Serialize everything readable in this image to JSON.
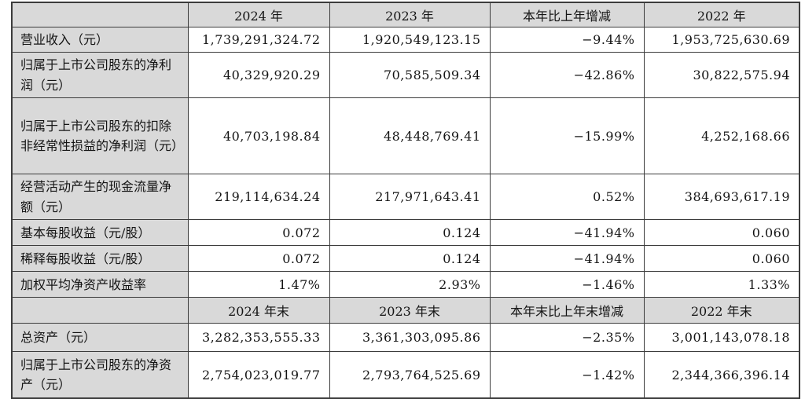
{
  "colors": {
    "header_bg": "#d9d9d9",
    "label_bg": "#d9d9d9",
    "cell_bg": "#ffffff",
    "border": "#3c3c3c",
    "text": "#141414"
  },
  "table": {
    "section_annual": {
      "corner": "",
      "columns": [
        "2024 年",
        "2023 年",
        "本年比上年增减",
        "2022 年"
      ],
      "rows": [
        {
          "label": "营业收入（元）",
          "y2024": "1,739,291,324.72",
          "y2023": "1,920,549,123.15",
          "change": "−9.44%",
          "y2022": "1,953,725,630.69"
        },
        {
          "label": "归属于上市公司股东的净利润（元）",
          "y2024": "40,329,920.29",
          "y2023": "70,585,509.34",
          "change": "−42.86%",
          "y2022": "30,822,575.94"
        },
        {
          "label": "归属于上市公司股东的扣除非经常性损益的净利润（元）",
          "y2024": "40,703,198.84",
          "y2023": "48,448,769.41",
          "change": "−15.99%",
          "y2022": "4,252,168.66"
        },
        {
          "label": "经营活动产生的现金流量净额（元）",
          "y2024": "219,114,634.24",
          "y2023": "217,971,643.41",
          "change": "0.52%",
          "y2022": "384,693,617.19"
        },
        {
          "label": "基本每股收益（元/股）",
          "y2024": "0.072",
          "y2023": "0.124",
          "change": "−41.94%",
          "y2022": "0.060"
        },
        {
          "label": "稀释每股收益（元/股）",
          "y2024": "0.072",
          "y2023": "0.124",
          "change": "−41.94%",
          "y2022": "0.060"
        },
        {
          "label": "加权平均净资产收益率",
          "y2024": "1.47%",
          "y2023": "2.93%",
          "change": "−1.46%",
          "y2022": "1.33%"
        }
      ]
    },
    "section_yearend": {
      "corner": "",
      "columns": [
        "2024 年末",
        "2023 年末",
        "本年末比上年末增减",
        "2022 年末"
      ],
      "rows": [
        {
          "label": "总资产（元）",
          "y2024": "3,282,353,555.33",
          "y2023": "3,361,303,095.86",
          "change": "−2.35%",
          "y2022": "3,001,143,078.18"
        },
        {
          "label": "归属于上市公司股东的净资产（元）",
          "y2024": "2,754,023,019.77",
          "y2023": "2,793,764,525.69",
          "change": "−1.42%",
          "y2022": "2,344,366,396.14"
        }
      ]
    }
  }
}
